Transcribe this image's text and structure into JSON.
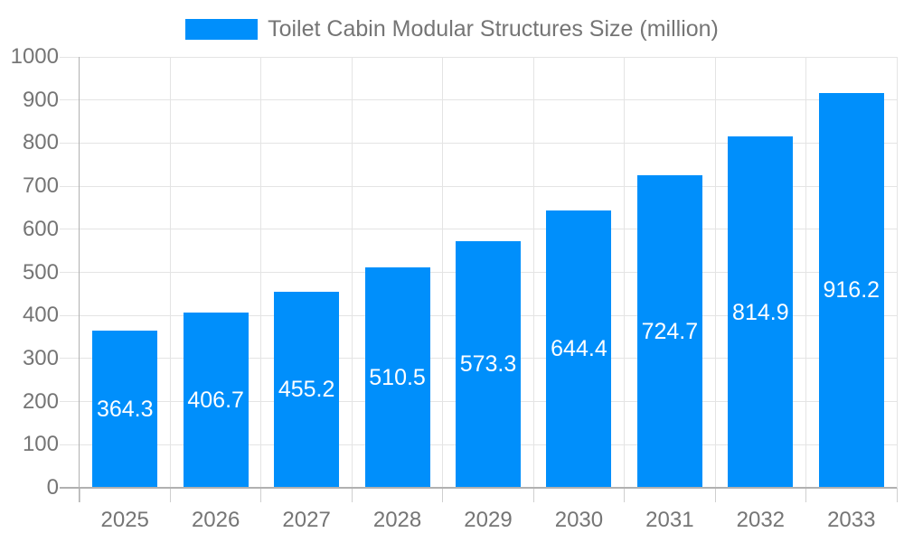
{
  "legend": {
    "label": "Toilet Cabin Modular Structures Size (million)",
    "swatch_color": "#008ffb"
  },
  "chart_data": {
    "type": "bar",
    "title": "Toilet Cabin Modular Structures Size (million)",
    "series_name": "Toilet Cabin Modular Structures Size (million)",
    "categories": [
      "2025",
      "2026",
      "2027",
      "2028",
      "2029",
      "2030",
      "2031",
      "2032",
      "2033"
    ],
    "values": [
      364.3,
      406.7,
      455.2,
      510.5,
      573.3,
      644.4,
      724.7,
      814.9,
      916.2
    ],
    "xlabel": "",
    "ylabel": "",
    "ylim": [
      0,
      1000
    ],
    "ytick_step": 100,
    "yticks": [
      0,
      100,
      200,
      300,
      400,
      500,
      600,
      700,
      800,
      900,
      1000
    ],
    "grid": true,
    "legend_position": "top",
    "value_label_position": "inside-center",
    "colors": {
      "bar": "#008ffb",
      "value_label_text": "#ffffff",
      "axis_text": "#757575",
      "grid_line": "#e4e4e4",
      "axis_line": "#b1b1b1"
    }
  }
}
